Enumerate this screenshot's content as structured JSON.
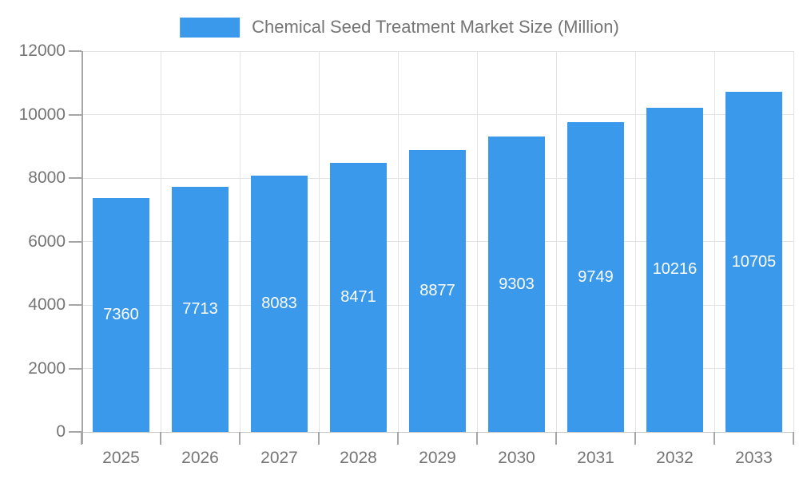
{
  "legend": {
    "label": "Chemical Seed Treatment Market Size (Million)"
  },
  "colors": {
    "bar": "#3b99eb",
    "grid": "#e3e3e3",
    "baseline": "#c4c4c4",
    "axis": "#a6a6a6",
    "axis_text": "#757575",
    "value_label": "#ffffff",
    "background": "#ffffff"
  },
  "chart_data": {
    "type": "bar",
    "title": "Chemical Seed Treatment Market Size (Million)",
    "categories": [
      "2025",
      "2026",
      "2027",
      "2028",
      "2029",
      "2030",
      "2031",
      "2032",
      "2033"
    ],
    "values": [
      7360,
      7713,
      8083,
      8471,
      8877,
      9303,
      9749,
      10216,
      10705
    ],
    "xlabel": "",
    "ylabel": "",
    "ylim": [
      0,
      12000
    ],
    "yticks": [
      0,
      2000,
      4000,
      6000,
      8000,
      10000,
      12000
    ],
    "grid": true,
    "legend_position": "top-center",
    "bar_labels_inside": true
  }
}
